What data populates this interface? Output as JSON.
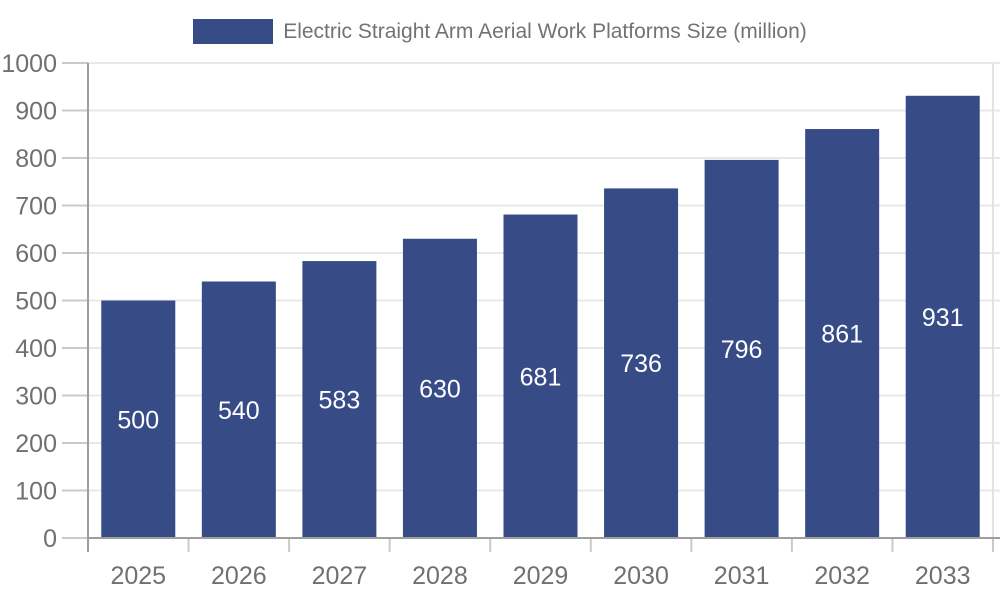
{
  "chart_data": {
    "type": "bar",
    "title": "",
    "categories": [
      "2025",
      "2026",
      "2027",
      "2028",
      "2029",
      "2030",
      "2031",
      "2032",
      "2033"
    ],
    "series": [
      {
        "name": "Electric Straight Arm Aerial Work Platforms Size (million)",
        "values": [
          500,
          540,
          583,
          630,
          681,
          736,
          796,
          861,
          931
        ]
      }
    ],
    "xlabel": "",
    "ylabel": "",
    "ylim": [
      0,
      1000
    ],
    "y_tick_step": 100,
    "y_tick_labels": [
      "0",
      "100",
      "200",
      "300",
      "400",
      "500",
      "600",
      "700",
      "800",
      "900",
      "1000"
    ],
    "grid": true,
    "legend_position": "top-center",
    "value_label_position": "inside-middle",
    "colors": {
      "bar": "#374b87",
      "value_label": "#ffffff",
      "axis_label": "#707070",
      "legend_text": "#737373",
      "gridline": "#e8e8e8",
      "axis_line": "#9e9e9e",
      "tick": "#cacaca",
      "plot_border": "#e4e4e4",
      "background": "#ffffff"
    }
  }
}
